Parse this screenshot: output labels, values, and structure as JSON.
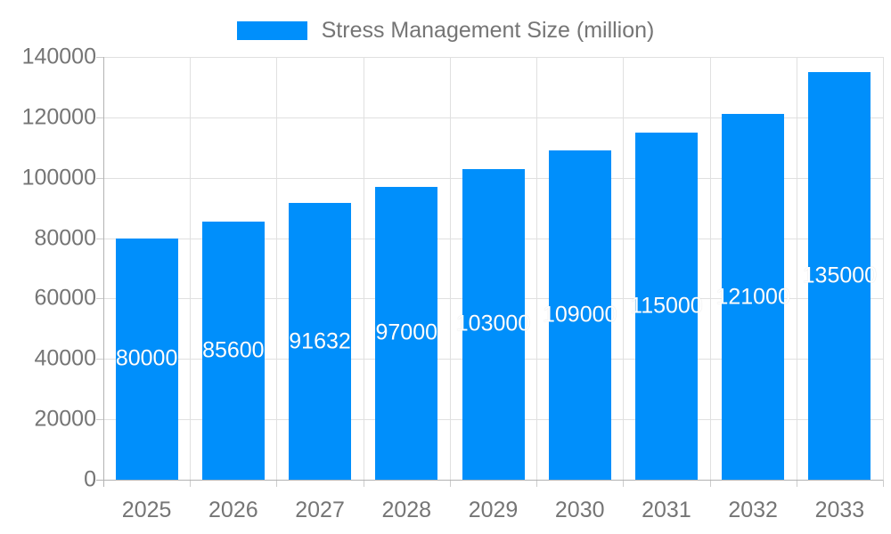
{
  "legend": {
    "label": "Stress Management Size (million)",
    "swatch_color": "#008FFB"
  },
  "chart_data": {
    "type": "bar",
    "title": "Stress Management Size (million)",
    "categories": [
      "2025",
      "2026",
      "2027",
      "2028",
      "2029",
      "2030",
      "2031",
      "2032",
      "2033"
    ],
    "values": [
      80000,
      85600,
      91632,
      97000,
      103000,
      109000,
      115000,
      121000,
      135000
    ],
    "bar_labels": [
      "80000",
      "85600",
      "91632",
      "97000",
      "103000",
      "109000",
      "115000",
      "121000",
      "135000"
    ],
    "series_name": "Stress Management Size (million)",
    "xlabel": "",
    "ylabel": "",
    "ylim": [
      0,
      140000
    ],
    "yticks": [
      0,
      20000,
      40000,
      60000,
      80000,
      100000,
      120000,
      140000
    ],
    "ytick_labels": [
      "0",
      "20000",
      "40000",
      "60000",
      "80000",
      "100000",
      "120000",
      "140000"
    ],
    "grid": true,
    "legend_position": "top",
    "colors": {
      "bar": "#008FFB",
      "bar_label_text": "#ffffff",
      "gridline": "#e0e0e0",
      "axis_line": "#b3b3b3",
      "axis_text": "#757575",
      "background": "#ffffff"
    }
  }
}
